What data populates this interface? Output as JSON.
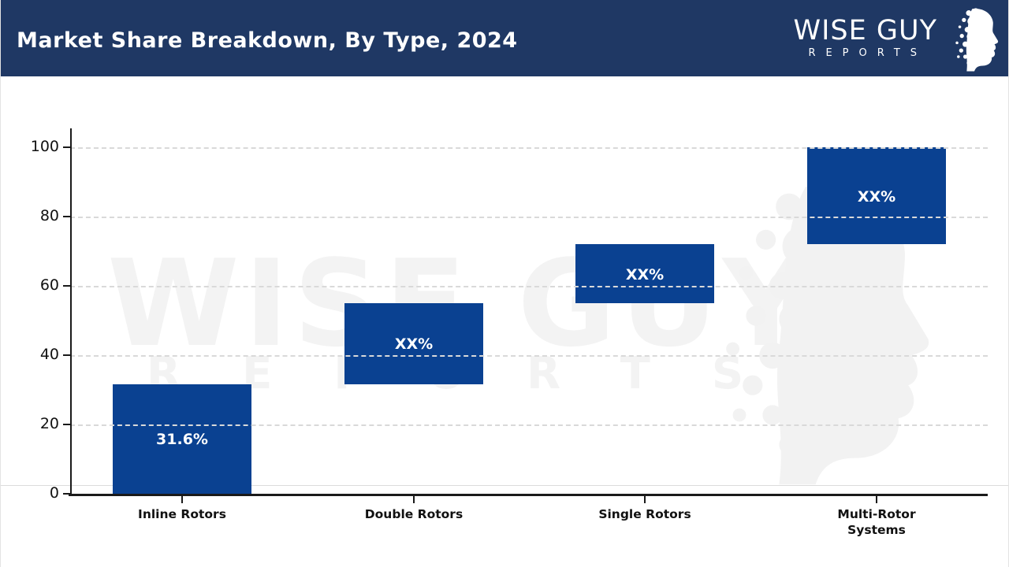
{
  "header": {
    "title": "Market Share Breakdown, By Type, 2024",
    "logo": {
      "line1": "WISE GUY",
      "line2": "REPORTS",
      "head_icon": "dotted-face-profile"
    }
  },
  "watermark": {
    "text_large": "WISE GUY",
    "text_small": "REPORTS",
    "face_icon": "dotted-face-profile"
  },
  "chart_data": {
    "type": "bar",
    "variant": "floating-segments-waterfall-style",
    "title": "Market Share Breakdown, By Type, 2024",
    "categories": [
      "Inline Rotors",
      "Double Rotors",
      "Single Rotors",
      "Multi-Rotor Systems"
    ],
    "series": [
      {
        "name": "Market Share %",
        "segments": [
          [
            0,
            31.6
          ],
          [
            31.6,
            55
          ],
          [
            55,
            72
          ],
          [
            72,
            100
          ]
        ],
        "labels": [
          "31.6%",
          "XX%",
          "XX%",
          "XX%"
        ]
      }
    ],
    "xlabel": "",
    "ylabel": "",
    "ylim": [
      0,
      100
    ],
    "yticks": [
      0,
      20,
      40,
      60,
      80,
      100
    ],
    "grid": "horizontal-dashed",
    "legend": "none",
    "colors": {
      "bar": "#0a4191",
      "header_bg": "#1f3864",
      "grid": "#d9d9d9",
      "axis": "#1a1a1a",
      "bar_label_text": "#ffffff",
      "category_text": "#111111",
      "watermark": "#f2f2f2"
    }
  }
}
